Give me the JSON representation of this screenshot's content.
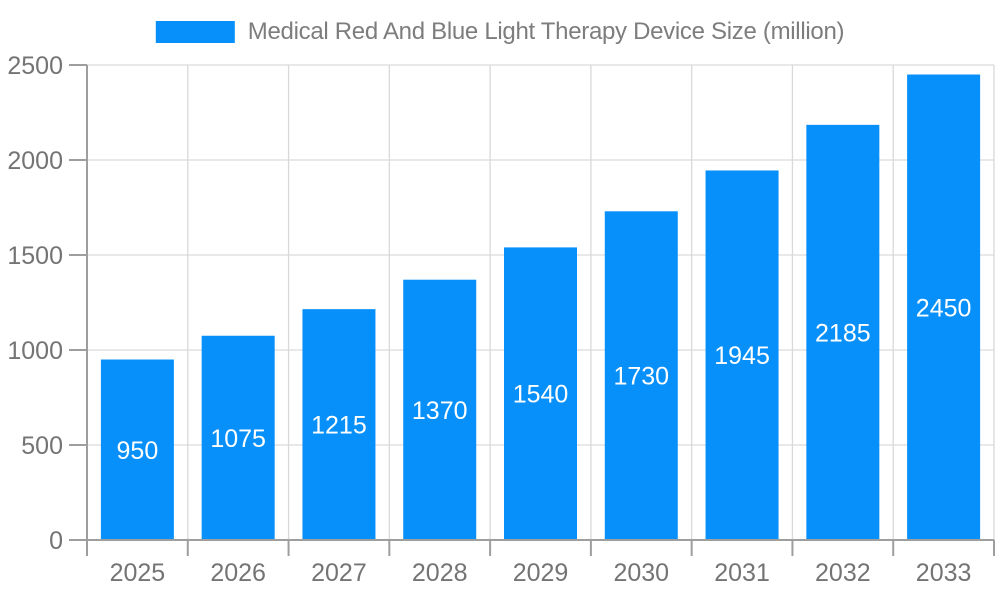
{
  "chart_data": {
    "type": "bar",
    "title": "Medical Red And Blue Light Therapy Device Size (million)",
    "legend": {
      "position": "top",
      "entries": [
        {
          "label": "Medical Red And Blue Light Therapy Device Size (million)",
          "color": "#0890fa"
        }
      ]
    },
    "categories": [
      "2025",
      "2026",
      "2027",
      "2028",
      "2029",
      "2030",
      "2031",
      "2032",
      "2033"
    ],
    "series": [
      {
        "name": "Medical Red And Blue Light Therapy Device Size (million)",
        "values": [
          950,
          1075,
          1215,
          1370,
          1540,
          1730,
          1945,
          2185,
          2450
        ]
      }
    ],
    "value_labels": [
      "950",
      "1075",
      "1215",
      "1370",
      "1540",
      "1730",
      "1945",
      "2185",
      "2450"
    ],
    "xlabel": "",
    "ylabel": "",
    "ylim": [
      0,
      2500
    ],
    "yticks": [
      0,
      500,
      1000,
      1500,
      2000,
      2500
    ],
    "ytick_labels": [
      "0",
      "500",
      "1000",
      "1500",
      "2000",
      "2500"
    ],
    "grid": true,
    "colors": {
      "bar": "#0890fa",
      "grid_line": "#d9d9d9",
      "axis_line": "#9e9e9e",
      "tick_mark": "#9e9e9e",
      "tick_label": "#747474",
      "title": "#7d7d7d",
      "value_label": "#ffffff",
      "background": "#ffffff"
    }
  }
}
